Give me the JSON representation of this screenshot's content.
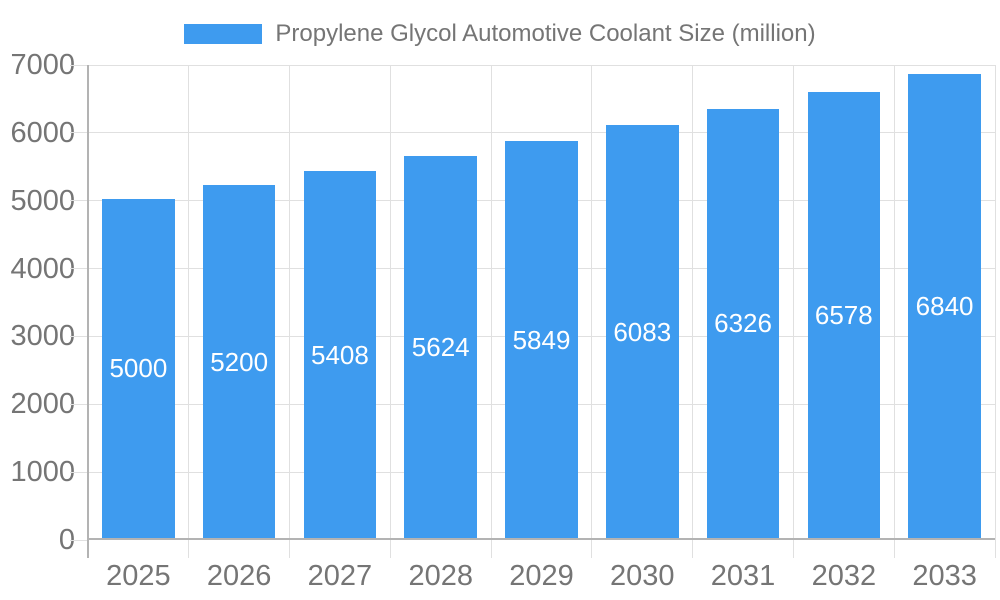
{
  "legend": {
    "label": "Propylene Glycol Automotive Coolant Size (million)"
  },
  "chart_data": {
    "type": "bar",
    "title": "Propylene Glycol Automotive Coolant Size (million)",
    "categories": [
      "2025",
      "2026",
      "2027",
      "2028",
      "2029",
      "2030",
      "2031",
      "2032",
      "2033"
    ],
    "values": [
      5000,
      5200,
      5408,
      5624,
      5849,
      6083,
      6326,
      6578,
      6840
    ],
    "xlabel": "",
    "ylabel": "",
    "ylim": [
      0,
      7000
    ],
    "yticks": [
      0,
      1000,
      2000,
      3000,
      4000,
      5000,
      6000,
      7000
    ],
    "grid": true,
    "legend_position": "top",
    "bar_color": "#3e9bef",
    "value_label_color": "#ffffff"
  },
  "colors": {
    "bar": "#3e9bef",
    "axis_text": "#757575",
    "grid_line": "#e0e0e0",
    "axis_line": "#b3b3b3",
    "background": "#ffffff"
  }
}
